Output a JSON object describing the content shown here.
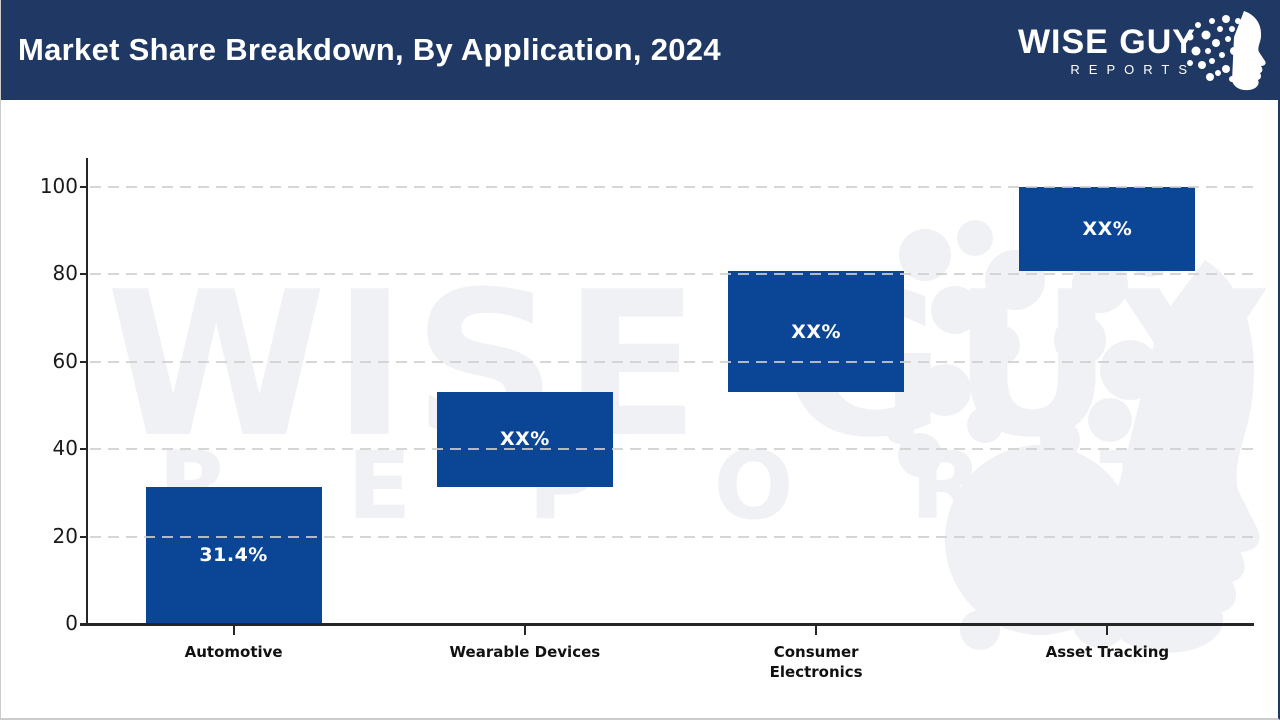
{
  "header": {
    "title": "Market Share Breakdown, By Application, 2024",
    "logo": {
      "brand_top": "WISE GUY",
      "brand_bottom": "REPORTS"
    }
  },
  "watermark": {
    "brand_top": "WISE GUY",
    "brand_bottom": "R E P O R T S"
  },
  "chart_data": {
    "type": "bar",
    "subtype": "waterfall-segments",
    "title": "Market Share Breakdown, By Application, 2024",
    "categories": [
      "Automotive",
      "Wearable Devices",
      "Consumer Electronics",
      "Asset Tracking"
    ],
    "segments": [
      {
        "category": "Automotive",
        "start": 0,
        "end": 31.4,
        "label": "31.4%"
      },
      {
        "category": "Wearable Devices",
        "start": 31.4,
        "end": 53.0,
        "label": "XX%"
      },
      {
        "category": "Consumer Electronics",
        "start": 53.0,
        "end": 80.6,
        "label": "XX%"
      },
      {
        "category": "Asset Tracking",
        "start": 80.6,
        "end": 100.0,
        "label": "XX%"
      }
    ],
    "ylim": [
      0,
      100
    ],
    "yticks": [
      0,
      20,
      40,
      60,
      80,
      100
    ],
    "xlabel": "",
    "ylabel": "",
    "legend": "none",
    "grid": {
      "axis": "y",
      "style": "dashed",
      "color": "#cfcfcf"
    },
    "bar_color": "#0b4696",
    "bar_label_color": "#ffffff",
    "axis_color": "#262626",
    "header_bg": "#1f3864",
    "watermark_color": "#f0f1f4"
  }
}
